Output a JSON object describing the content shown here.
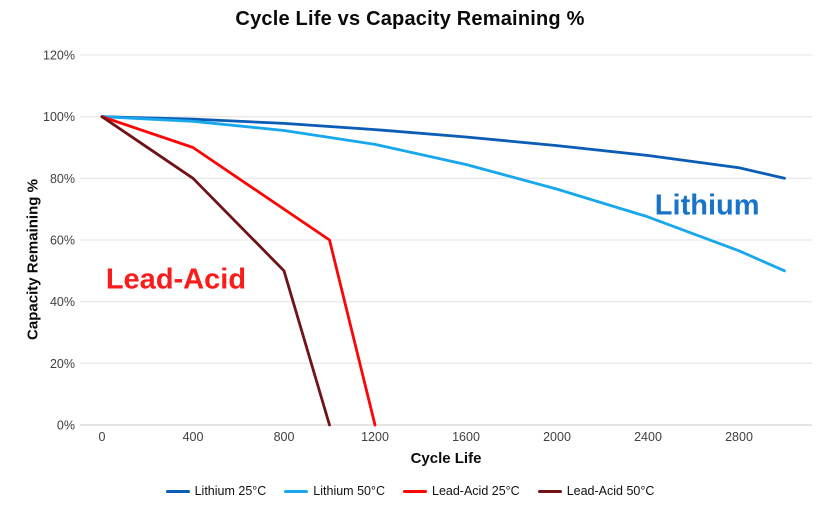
{
  "chart_data": {
    "type": "line",
    "title": "Cycle Life vs Capacity Remaining %",
    "xlabel": "Cycle Life",
    "ylabel": "Capacity Remaining %",
    "xlim": [
      0,
      3000
    ],
    "ylim": [
      0,
      120
    ],
    "grid": "horizontal-only",
    "legend_position": "bottom",
    "x_ticks": [
      {
        "value": 0,
        "label": "0"
      },
      {
        "value": 400,
        "label": "400"
      },
      {
        "value": 800,
        "label": "800"
      },
      {
        "value": 1200,
        "label": "1200"
      },
      {
        "value": 1600,
        "label": "1600"
      },
      {
        "value": 2000,
        "label": "2000"
      },
      {
        "value": 2400,
        "label": "2400"
      },
      {
        "value": 2800,
        "label": "2800"
      }
    ],
    "y_ticks": [
      {
        "value": 0,
        "label": "0%"
      },
      {
        "value": 20,
        "label": "20%"
      },
      {
        "value": 40,
        "label": "40%"
      },
      {
        "value": 60,
        "label": "60%"
      },
      {
        "value": 80,
        "label": "80%"
      },
      {
        "value": 100,
        "label": "100%"
      },
      {
        "value": 120,
        "label": "120%"
      }
    ],
    "series": [
      {
        "name": "Lithium 25°C",
        "color": "#0B5CB5",
        "points": [
          [
            0,
            100
          ],
          [
            400,
            99.2
          ],
          [
            800,
            97.8
          ],
          [
            1200,
            95.8
          ],
          [
            1600,
            93.4
          ],
          [
            2000,
            90.6
          ],
          [
            2400,
            87.4
          ],
          [
            2800,
            83.4
          ],
          [
            3000,
            80
          ]
        ]
      },
      {
        "name": "Lithium 50°C",
        "color": "#19A7EC",
        "points": [
          [
            0,
            100
          ],
          [
            400,
            98.5
          ],
          [
            800,
            95.5
          ],
          [
            1200,
            91
          ],
          [
            1600,
            84.5
          ],
          [
            2000,
            76.5
          ],
          [
            2400,
            67.5
          ],
          [
            2800,
            56.5
          ],
          [
            3000,
            50
          ]
        ]
      },
      {
        "name": "Lead-Acid 25°C",
        "color": "#FE0505",
        "points": [
          [
            0,
            100
          ],
          [
            400,
            90
          ],
          [
            1000,
            60
          ],
          [
            1200,
            0
          ]
        ]
      },
      {
        "name": "Lead-Acid 50°C",
        "color": "#701318",
        "points": [
          [
            0,
            100
          ],
          [
            400,
            80
          ],
          [
            800,
            50
          ],
          [
            1000,
            0
          ]
        ]
      }
    ],
    "annotations": [
      {
        "text": "Lithium",
        "color": "#1973C8",
        "x": 2660,
        "y": 71.5
      },
      {
        "text": "Lead-Acid",
        "color": "#FB1B1B",
        "x": 325,
        "y": 47.5
      }
    ],
    "grid_color": "#E9E9E9",
    "axis_line_color": "#D4D4D4"
  }
}
